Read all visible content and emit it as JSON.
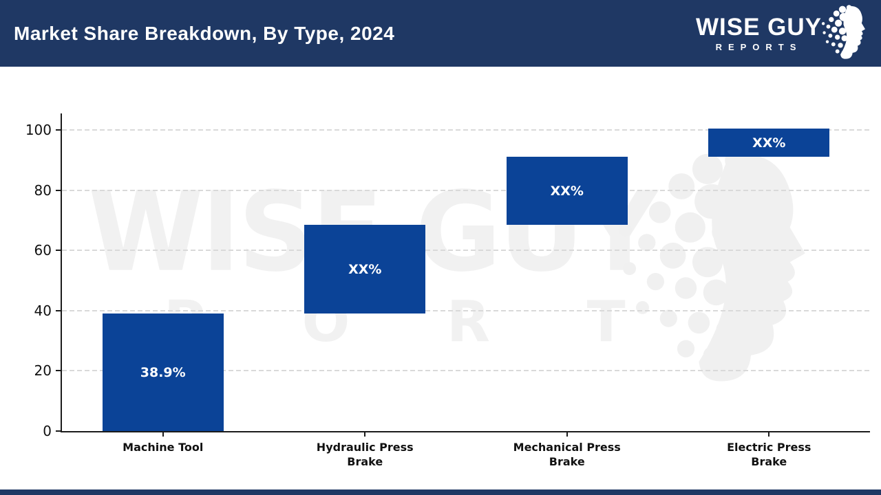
{
  "header": {
    "title": "Market Share Breakdown, By Type, 2024",
    "logo": {
      "line1": "WISE GUY",
      "line2": "REPORTS"
    }
  },
  "watermark": {
    "line1": "WISE GUY",
    "line2": "P O R T S"
  },
  "chart_data": {
    "type": "bar",
    "variant": "waterfall-stacked-breakdown",
    "title": "Market Share Breakdown, By Type, 2024",
    "categories": [
      "Machine Tool",
      "Hydraulic Press\nBrake",
      "Mechanical Press\nBrake",
      "Electric Press\nBrake"
    ],
    "segments": [
      {
        "category": "Machine Tool",
        "start": 0,
        "end": 39,
        "label": "38.9%"
      },
      {
        "category": "Hydraulic Press Brake",
        "start": 39,
        "end": 68.5,
        "label": "XX%"
      },
      {
        "category": "Mechanical Press Brake",
        "start": 68.5,
        "end": 91,
        "label": "XX%"
      },
      {
        "category": "Electric Press Brake",
        "start": 91,
        "end": 100.5,
        "label": "XX%"
      }
    ],
    "yticks": [
      0,
      20,
      40,
      60,
      80,
      100
    ],
    "ylim": [
      0,
      105.5
    ],
    "xlabel": "",
    "ylabel": "",
    "grid": "horizontal-dashed",
    "legend_position": "none",
    "bar_color": "#0b4397",
    "bar_label_color": "#ffffff",
    "grid_color": "#d9d9d9",
    "axis_color": "#1a1a1a"
  },
  "colors": {
    "header_bg": "#1f3864",
    "footer_bg": "#1f3864",
    "accent_blue": "#0b4397",
    "watermark_gray": "#f1f1f1"
  }
}
